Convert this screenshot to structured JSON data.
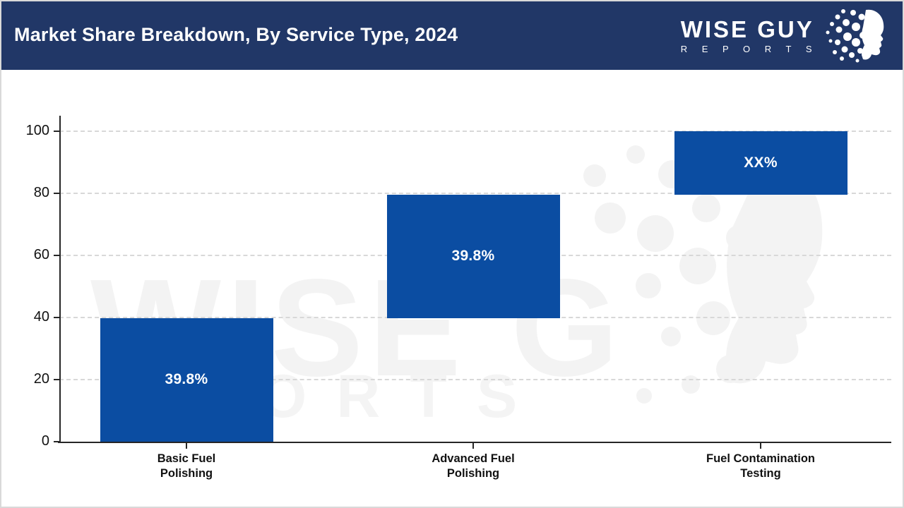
{
  "header": {
    "title": "Market Share Breakdown, By Service Type, 2024",
    "logo": {
      "line1": "WISE GUY",
      "line2": "R E P O R T S"
    }
  },
  "watermark": {
    "line1": "WISE G",
    "line2": "PORTS"
  },
  "colors": {
    "header_bg": "#213767",
    "bar": "#0b4da2",
    "bar_label": "#ffffff",
    "grid": "#d8d8d8",
    "axis": "#262626",
    "watermark": "#f3f3f3",
    "frame_border": "#d9d9d9"
  },
  "chart_data": {
    "type": "bar",
    "variant": "waterfall-floating-bars",
    "title": "Market Share Breakdown, By Service Type, 2024",
    "categories": [
      [
        "Basic Fuel",
        "Polishing"
      ],
      [
        "Advanced Fuel",
        "Polishing"
      ],
      [
        "Fuel Contamination",
        "Testing"
      ]
    ],
    "segments": [
      {
        "category": "Basic Fuel Polishing",
        "start": 0,
        "end": 39.8,
        "label": "39.8%"
      },
      {
        "category": "Advanced Fuel Polishing",
        "start": 39.8,
        "end": 79.6,
        "label": "39.8%"
      },
      {
        "category": "Fuel Contamination Testing",
        "start": 79.6,
        "end": 100,
        "label": "XX%"
      }
    ],
    "xlabel": "",
    "ylabel": "",
    "ylim": [
      0,
      100
    ],
    "yticks": [
      0,
      20,
      40,
      60,
      80,
      100
    ],
    "grid": "horizontal dashed",
    "legend": "none"
  }
}
